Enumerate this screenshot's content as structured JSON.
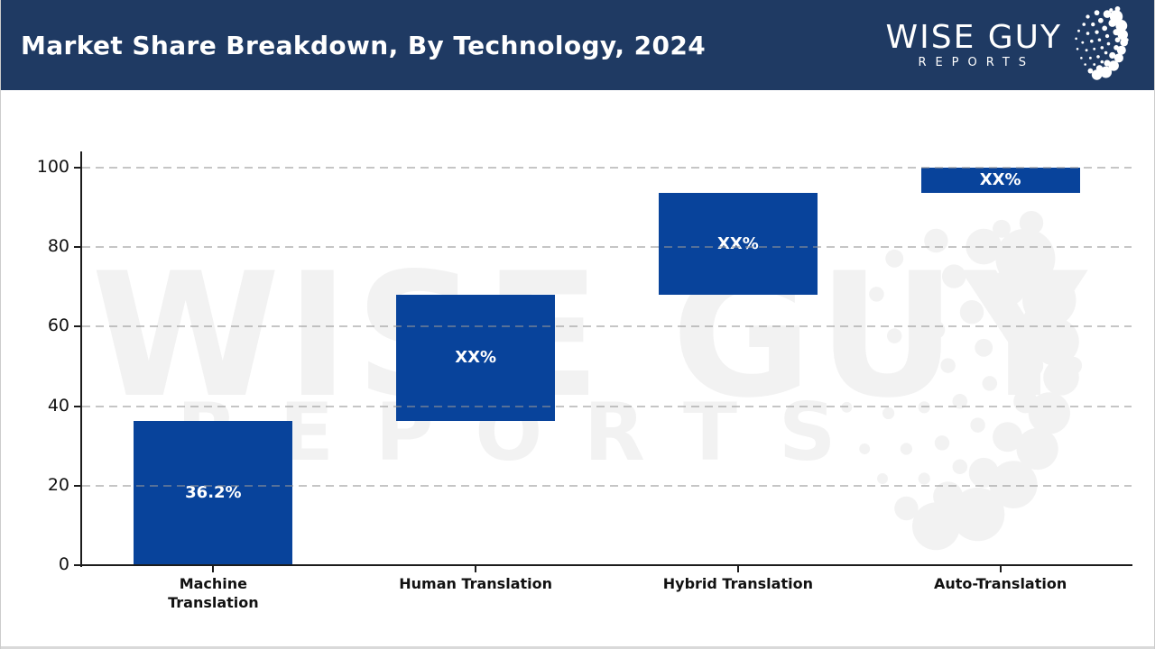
{
  "header": {
    "title": "Market Share Breakdown, By Technology, 2024",
    "logo": {
      "name": "WISE GUY",
      "subtitle": "REPORTS"
    }
  },
  "watermark": {
    "name": "WISE GUY",
    "subtitle": "REPORTS"
  },
  "chart_data": {
    "type": "bar",
    "subtype": "waterfall (floating cumulative segments)",
    "title": "Market Share Breakdown, By Technology, 2024",
    "categories": [
      "Machine\nTranslation",
      "Human Translation",
      "Hybrid Translation",
      "Auto-Translation"
    ],
    "segments": [
      {
        "category": "Machine Translation",
        "start": 0,
        "end": 36.2,
        "label": "36.2%"
      },
      {
        "category": "Human Translation",
        "start": 36.2,
        "end": 68,
        "label": "XX%"
      },
      {
        "category": "Hybrid Translation",
        "start": 68,
        "end": 93.6,
        "label": "XX%"
      },
      {
        "category": "Auto-Translation",
        "start": 93.6,
        "end": 100,
        "label": "XX%"
      }
    ],
    "y_axis": {
      "min": 0,
      "max": 105,
      "ticks": [
        0,
        20,
        40,
        60,
        80,
        100
      ]
    },
    "x_axis_label": "",
    "y_axis_label": "",
    "legend": "none",
    "grid": {
      "horizontal_dashed": true,
      "drawn_above_bars": true
    },
    "colors": {
      "bar": "#08439b",
      "bar_label": "#ffffff",
      "header_bg": "#1f3a63",
      "grid": "#c9c9c9",
      "axis": "#1c1c1c",
      "watermark": "#f2f2f2"
    }
  }
}
